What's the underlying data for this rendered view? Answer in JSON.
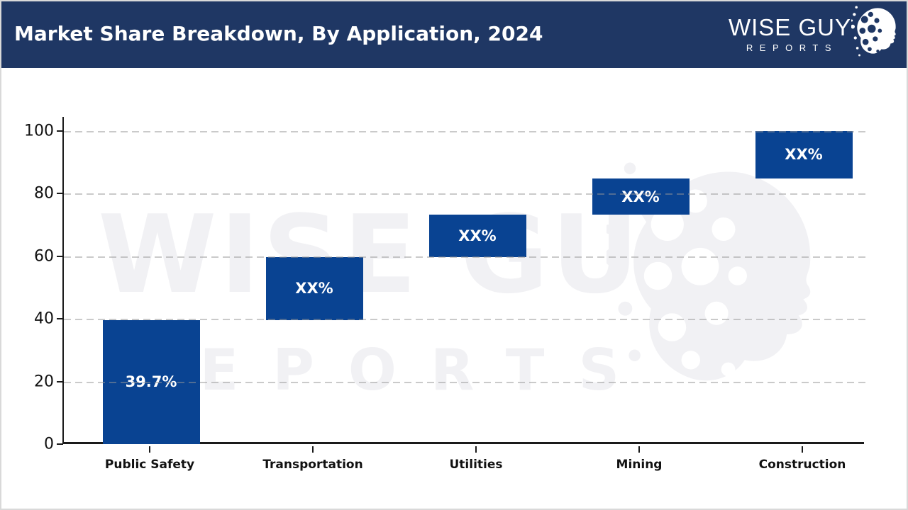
{
  "header": {
    "title": "Market Share Breakdown, By Application, 2024",
    "logo": {
      "name": "WISE GUY",
      "sub": "REPORTS"
    }
  },
  "watermark": {
    "name": "WISE GUY",
    "sub": "REPORTS"
  },
  "colors": {
    "header_bg": "#1f3764",
    "bar": "#094392",
    "grid": "#cfcfcf",
    "axis": "#1a1a1a",
    "bar_label": "#ffffff",
    "tick_label": "#111111"
  },
  "chart_data": {
    "type": "bar",
    "variant": "waterfall",
    "title": "Market Share Breakdown, By Application, 2024",
    "categories": [
      "Public Safety",
      "Transportation",
      "Utilities",
      "Mining",
      "Construction"
    ],
    "segments": [
      {
        "category": "Public Safety",
        "start": 0,
        "end": 39.7,
        "label": "39.7%"
      },
      {
        "category": "Transportation",
        "start": 39.7,
        "end": 59.7,
        "label": "XX%"
      },
      {
        "category": "Utilities",
        "start": 59.7,
        "end": 73.2,
        "label": "XX%"
      },
      {
        "category": "Mining",
        "start": 73.2,
        "end": 84.9,
        "label": "XX%"
      },
      {
        "category": "Construction",
        "start": 84.9,
        "end": 100,
        "label": "XX%"
      }
    ],
    "yticks": [
      0,
      20,
      40,
      60,
      80,
      100
    ],
    "ylim": [
      0,
      104.5
    ],
    "xlabel": "",
    "ylabel": "",
    "grid": "horizontal-dashed",
    "legend": "none"
  }
}
